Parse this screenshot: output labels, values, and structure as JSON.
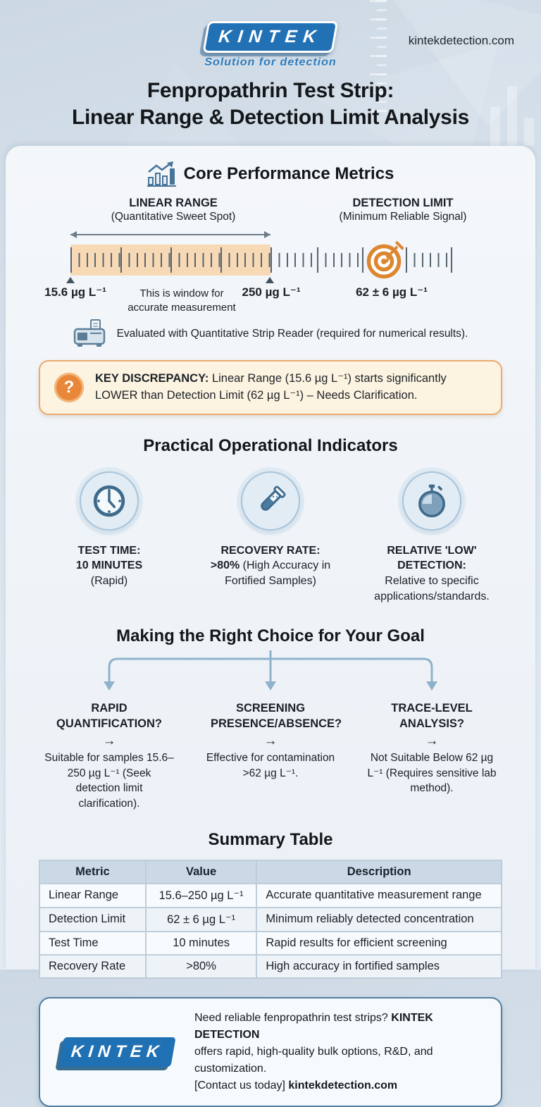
{
  "header": {
    "logo_text": "KINTEK",
    "logo_tagline": "Solution for detection",
    "website": "kintekdetection.com",
    "title_line1": "Fenpropathrin Test Strip:",
    "title_line2": "Linear Range & Detection Limit Analysis"
  },
  "core_metrics": {
    "section_title": "Core Performance Metrics",
    "linear_range": {
      "label": "LINEAR RANGE",
      "sublabel": "(Quantitative Sweet Spot)",
      "min": "15.6 µg L⁻¹",
      "max": "250 µg L⁻¹",
      "note_line1": "This is window for",
      "note_line2": "accurate measurement"
    },
    "detection_limit": {
      "label": "DETECTION LIMIT",
      "sublabel": "(Minimum Reliable Signal)",
      "value": "62 ± 6 µg L⁻¹"
    },
    "reader_note": "Evaluated with Quantitative Strip Reader (required for numerical results)."
  },
  "discrepancy": {
    "label": "KEY DISCREPANCY:",
    "line1": " Linear Range (15.6 µg L⁻¹) starts significantly",
    "line2": "LOWER than Detection Limit (62 µg L⁻¹) – Needs Clarification."
  },
  "indicators": {
    "section_title": "Practical Operational Indicators",
    "items": [
      {
        "icon": "clock-icon",
        "line1": "TEST TIME:",
        "line2": "10 MINUTES",
        "line3": "(Rapid)"
      },
      {
        "icon": "test-tube-icon",
        "line1": "RECOVERY RATE:",
        "bold": ">80%",
        "rest": " (High Accuracy in Fortified Samples)"
      },
      {
        "icon": "stopwatch-icon",
        "line1": "RELATIVE 'LOW' DETECTION:",
        "line2": "Relative to specific applications/standards."
      }
    ]
  },
  "choice": {
    "section_title": "Making the Right Choice for Your Goal",
    "arrow": "→",
    "columns": [
      {
        "heading": "RAPID QUANTIFICATION?",
        "body": "Suitable for samples 15.6–250 µg L⁻¹ (Seek detection limit clarification)."
      },
      {
        "heading": "SCREENING PRESENCE/ABSENCE?",
        "body": "Effective for contamination >62 µg L⁻¹."
      },
      {
        "heading": "TRACE-LEVEL ANALYSIS?",
        "body": "Not Suitable Below 62 µg L⁻¹ (Requires sensitive lab method)."
      }
    ]
  },
  "table": {
    "section_title": "Summary Table",
    "columns": [
      "Metric",
      "Value",
      "Description"
    ],
    "rows": [
      [
        "Linear Range",
        "15.6–250 µg L⁻¹",
        "Accurate quantitative measurement range"
      ],
      [
        "Detection Limit",
        "62 ± 6 µg L⁻¹",
        "Minimum reliably detected concentration"
      ],
      [
        "Test Time",
        "10 minutes",
        "Rapid results for efficient screening"
      ],
      [
        "Recovery Rate",
        ">80%",
        "High accuracy in fortified samples"
      ]
    ]
  },
  "footer": {
    "logo_text": "KINTEK",
    "line1a": "Need reliable fenpropathrin test strips? ",
    "line1b": "KINTEK DETECTION",
    "line2": "offers rapid, high-quality bulk options, R&D, and customization.",
    "line3a": "[Contact us today] ",
    "line3b": "kintekdetection.com"
  },
  "colors": {
    "brand_blue": "#2271b5",
    "steel_blue": "#3e6a8c",
    "accent_orange": "#e2862f",
    "highlight_peach": "#f8d9b6"
  }
}
